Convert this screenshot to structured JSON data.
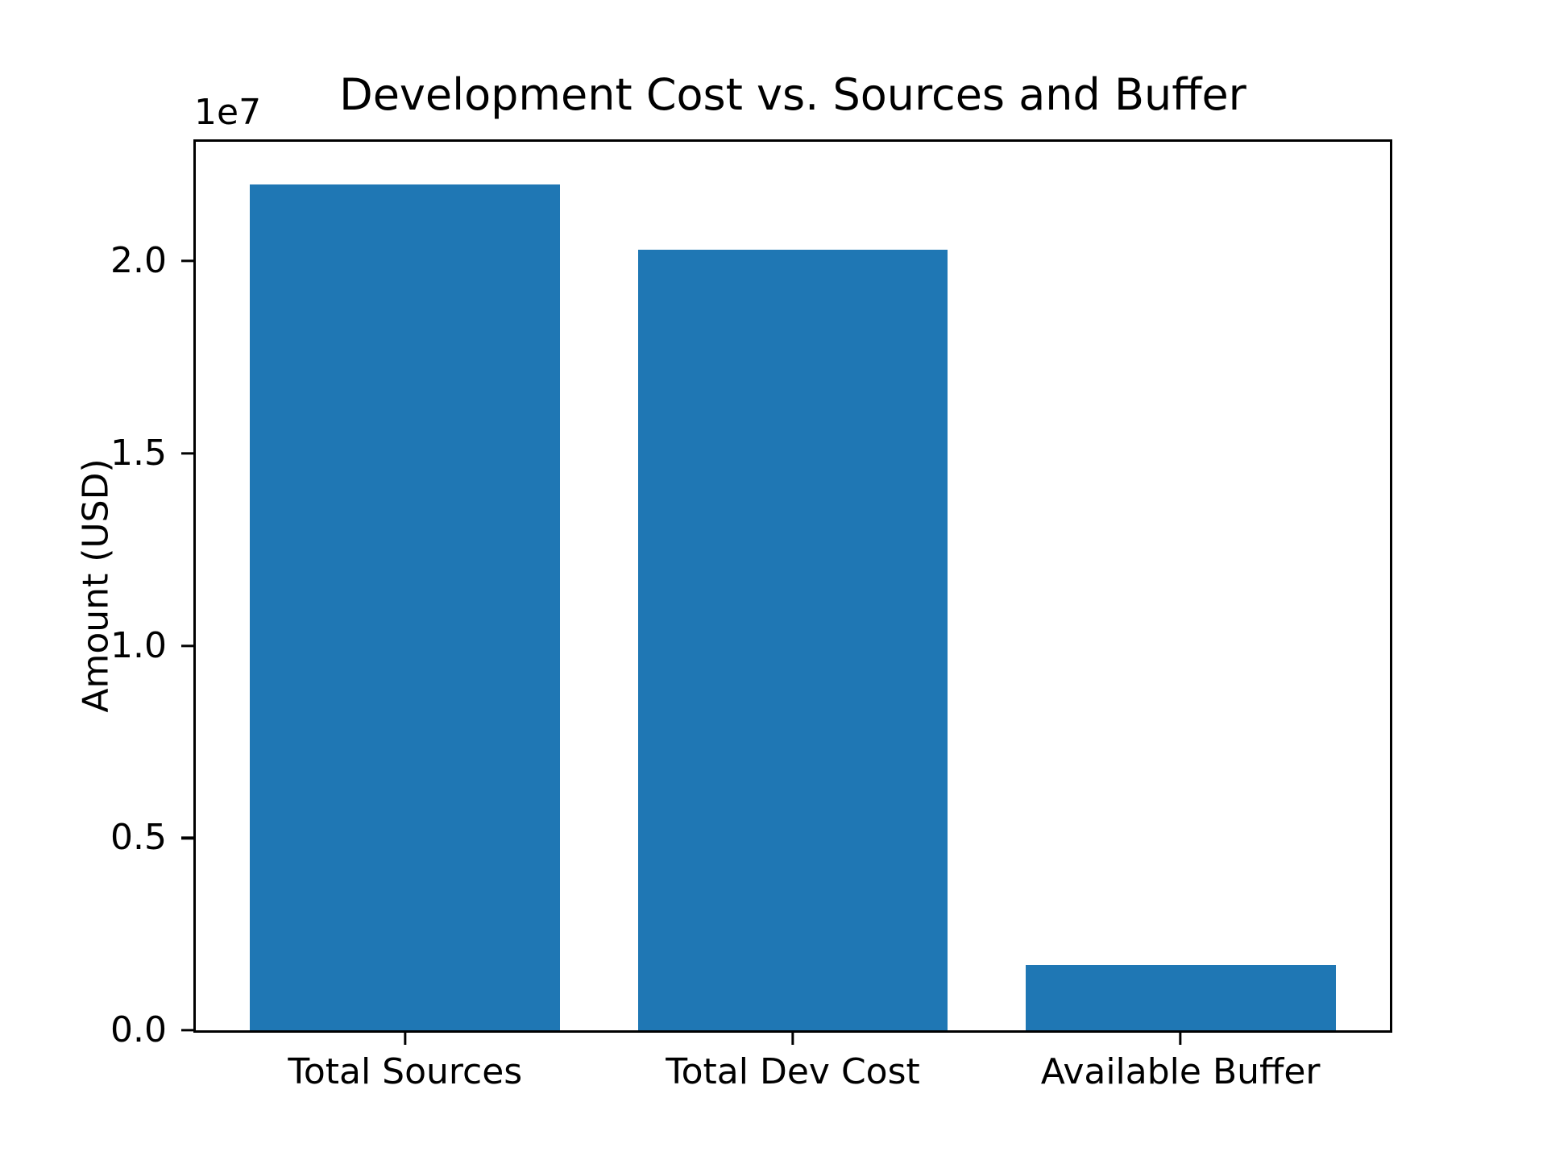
{
  "chart_data": {
    "type": "bar",
    "title": "Development Cost vs. Sources and Buffer",
    "xlabel": "",
    "ylabel": "Amount (USD)",
    "offset_text": "1e7",
    "categories": [
      "Total Sources",
      "Total Dev Cost",
      "Available Buffer"
    ],
    "values": [
      22000000,
      20300000,
      1700000
    ],
    "ytick_values": [
      0,
      5000000,
      10000000,
      15000000,
      20000000
    ],
    "ytick_labels": [
      "0.0",
      "0.5",
      "1.0",
      "1.5",
      "2.0"
    ],
    "ylim": [
      0,
      23100000
    ],
    "xlim": [
      -0.54,
      2.54
    ],
    "bar_width": 0.8,
    "bar_color": "#1f77b4",
    "spine_color": "#000000",
    "background_color": "#ffffff",
    "grid": false,
    "legend": null
  }
}
